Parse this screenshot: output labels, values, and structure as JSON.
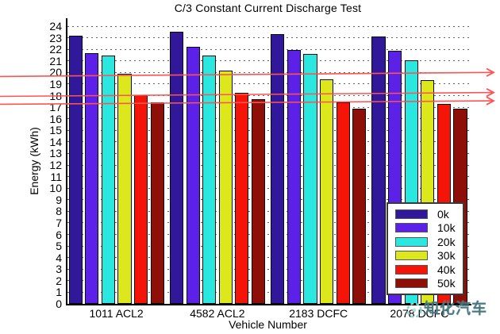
{
  "watermark": {
    "text": "知化汽车",
    "logo": "aperture-circle-logo",
    "color": "#48666c"
  },
  "chart_data": {
    "type": "bar",
    "title": "C/3 Constant Current Discharge Test",
    "xlabel": "Vehicle Number",
    "ylabel": "Energy (kWh)",
    "ylim": [
      0,
      24
    ],
    "ytick_step": 1,
    "grid": "horizontal-dotted",
    "legend_position": "inside-lower-right",
    "categories": [
      "1011 ACL2",
      "4582 ACL2",
      "2183 DCFC",
      "2078 DCFC"
    ],
    "series": [
      {
        "name": "0k",
        "color": "#31189b",
        "values": [
          23.2,
          23.5,
          23.3,
          23.1
        ]
      },
      {
        "name": "10k",
        "color": "#5c21e6",
        "values": [
          21.7,
          22.25,
          21.95,
          21.9
        ]
      },
      {
        "name": "20k",
        "color": "#2ae8e0",
        "values": [
          21.45,
          21.45,
          21.6,
          21.05
        ]
      },
      {
        "name": "30k",
        "color": "#dce81c",
        "values": [
          19.9,
          20.15,
          19.4,
          19.35
        ]
      },
      {
        "name": "40k",
        "color": "#f51408",
        "values": [
          18.05,
          18.25,
          17.4,
          17.3
        ]
      },
      {
        "name": "50k",
        "color": "#8e0f08",
        "values": [
          17.4,
          17.7,
          16.9,
          16.9
        ]
      }
    ],
    "annotation_lines": [
      {
        "y_left_kwh": 19.65,
        "y_right_kwh": 20.0
      },
      {
        "y_left_kwh": 17.93,
        "y_right_kwh": 18.27
      },
      {
        "y_left_kwh": 17.25,
        "y_right_kwh": 17.55
      }
    ],
    "annotation_color": "#ff5252",
    "annotation_style": "horizontal red arrows pointing right, spanning full image width"
  }
}
